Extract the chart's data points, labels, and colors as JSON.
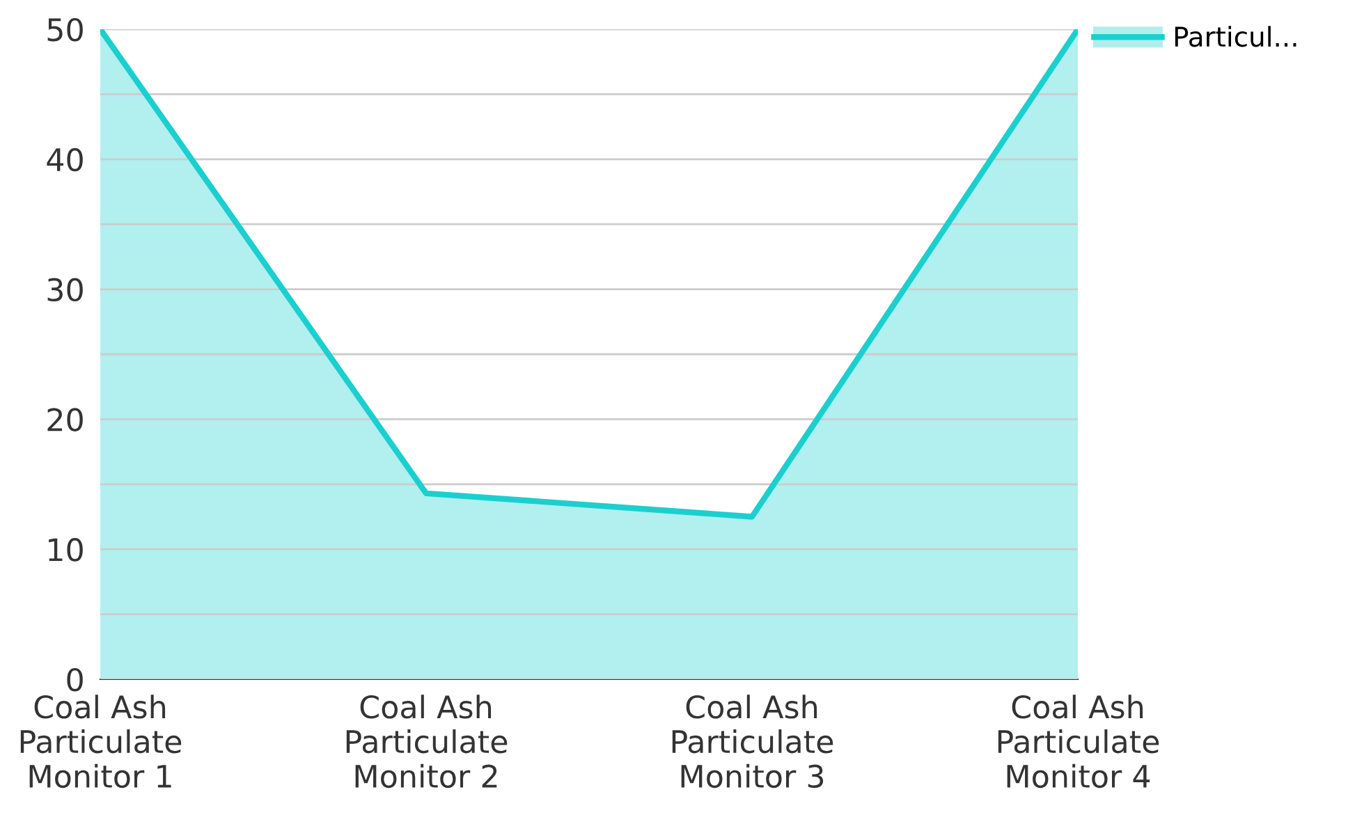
{
  "chart_data": {
    "type": "area",
    "categories": [
      "Coal Ash Particulate Monitor 1",
      "Coal Ash Particulate Monitor 2",
      "Coal Ash Particulate Monitor 3",
      "Coal Ash Particulate Monitor 4"
    ],
    "series": [
      {
        "name": "Particul...",
        "color": "#1ccfcf",
        "values": [
          50,
          14.3,
          12.5,
          50
        ]
      }
    ],
    "ylim": [
      0,
      50
    ],
    "yticks": [
      0,
      {
        "value": 5,
        "label": null
      },
      10,
      {
        "value": 15,
        "label": null
      },
      20,
      {
        "value": 25,
        "label": null
      },
      30,
      {
        "value": 35,
        "label": null
      },
      40,
      {
        "value": 45,
        "label": null
      },
      50
    ],
    "grid": "y",
    "legend": "top right"
  }
}
